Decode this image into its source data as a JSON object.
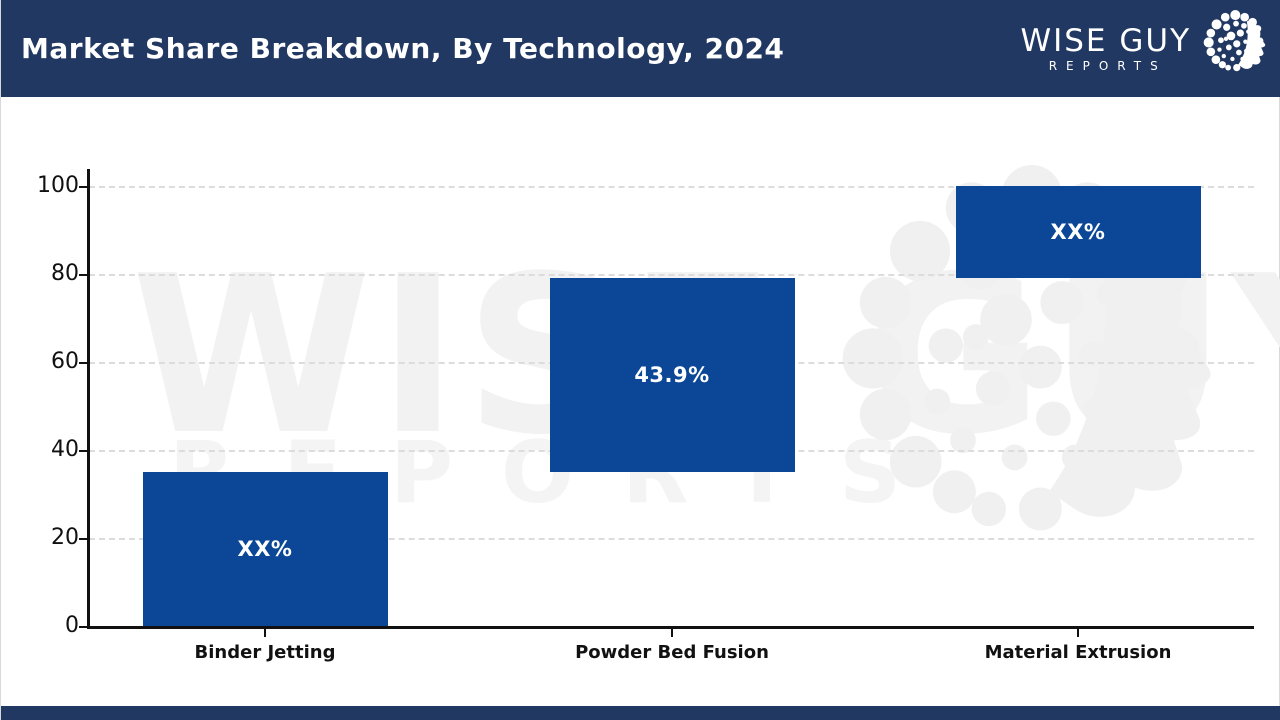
{
  "header": {
    "title": "Market Share Breakdown, By Technology, 2024",
    "logo": {
      "brand_line1": "WISE GUY",
      "brand_line2": "REPORTS"
    }
  },
  "watermark": {
    "line1": "WISE GUY",
    "line2": "REPORTS"
  },
  "chart_data": {
    "type": "bar",
    "subtype": "floating-range-waterfall",
    "title": "Market Share Breakdown, By Technology, 2024",
    "categories": [
      "Binder Jetting",
      "Powder Bed Fusion",
      "Material Extrusion"
    ],
    "series": [
      {
        "name": "Market Share (%)",
        "ranges": [
          [
            0,
            35.1
          ],
          [
            35.1,
            79.0
          ],
          [
            79.0,
            100
          ]
        ],
        "bar_labels": [
          "XX%",
          "43.9%",
          "XX%"
        ]
      }
    ],
    "xlabel": "",
    "ylabel": "",
    "ylim": [
      0,
      100
    ],
    "yticks": [
      0,
      20,
      40,
      60,
      80,
      100
    ],
    "grid": {
      "horizontal": true,
      "style": "dashed"
    },
    "legend": "none",
    "colors": {
      "bar": "#0b4796",
      "bar_label": "#ffffff",
      "axis": "#111111",
      "grid": "#dcdcdc",
      "header_bg": "#213863",
      "footer_bg": "#213863",
      "watermark": "#f2f2f2"
    }
  }
}
